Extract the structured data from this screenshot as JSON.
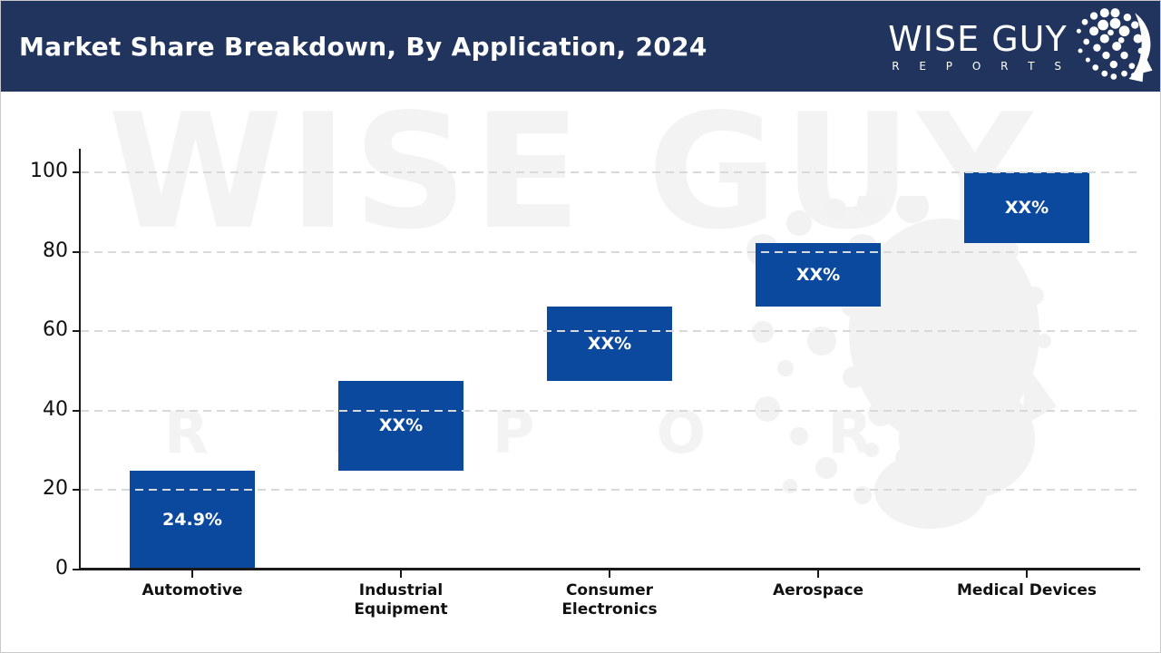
{
  "header": {
    "title": "Market Share Breakdown, By Application, 2024",
    "logo": {
      "line1": "WISE GUY",
      "line2": "R E P O R T S"
    }
  },
  "watermark": {
    "line1": "WISE GUY",
    "line2": "R E P O R T S"
  },
  "chart_data": {
    "type": "bar",
    "subtype": "waterfall",
    "title": "Market Share Breakdown, By Application, 2024",
    "xlabel": "",
    "ylabel": "",
    "ylim": [
      0,
      105
    ],
    "yticks": [
      0,
      20,
      40,
      60,
      80,
      100
    ],
    "grid": "horizontal-dashed",
    "legend": "none",
    "categories": [
      "Automotive",
      "Industrial\nEquipment",
      "Consumer\nElectronics",
      "Aerospace",
      "Medical Devices"
    ],
    "segments": [
      {
        "category": "Automotive",
        "start": 0,
        "end": 24.9,
        "label": "24.9%"
      },
      {
        "category": "Industrial Equipment",
        "start": 24.9,
        "end": 47.4,
        "label": "XX%"
      },
      {
        "category": "Consumer Electronics",
        "start": 47.4,
        "end": 66.2,
        "label": "XX%"
      },
      {
        "category": "Aerospace",
        "start": 66.2,
        "end": 82.1,
        "label": "XX%"
      },
      {
        "category": "Medical Devices",
        "start": 82.1,
        "end": 100,
        "label": "XX%"
      }
    ],
    "colors": {
      "bar": "#0B499E",
      "bar_label": "#FFFFFF",
      "header_bg": "#21345E",
      "grid": "#D9D9D9",
      "axis": "#1A1A1A",
      "tick_label": "#111111",
      "watermark": "#F2F2F3"
    }
  }
}
